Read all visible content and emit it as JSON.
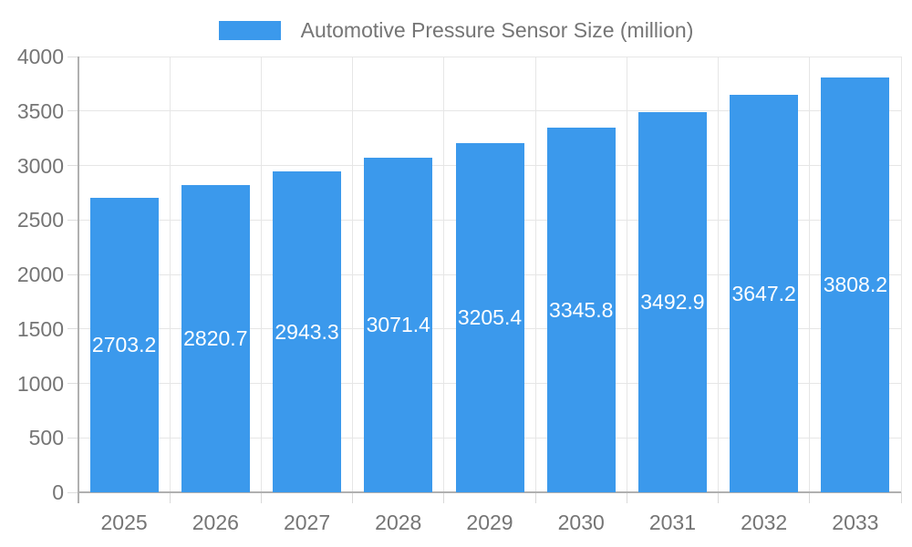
{
  "legend": {
    "label": "Automotive Pressure Sensor Size (million)"
  },
  "chart_data": {
    "type": "bar",
    "title": "Automotive Pressure Sensor Size (million)",
    "categories": [
      "2025",
      "2026",
      "2027",
      "2028",
      "2029",
      "2030",
      "2031",
      "2032",
      "2033"
    ],
    "values": [
      2703.2,
      2820.7,
      2943.3,
      3071.4,
      3205.4,
      3345.8,
      3492.9,
      3647.2,
      3808.2
    ],
    "value_labels": [
      "2703.2",
      "2820.7",
      "2943.3",
      "3071.4",
      "3205.4",
      "3345.8",
      "3492.9",
      "3647.2",
      "3808.2"
    ],
    "xlabel": "",
    "ylabel": "",
    "ylim": [
      0,
      4000
    ],
    "ytick_step": 500,
    "ytick_labels": [
      "0",
      "500",
      "1000",
      "1500",
      "2000",
      "2500",
      "3000",
      "3500",
      "4000"
    ],
    "grid": true,
    "legend_position": "top",
    "bar_color": "#3b99ec",
    "value_label_color": "#ffffff",
    "axis_text_color": "#757575",
    "grid_color": "#e6e6e6",
    "axis_line_color": "#b0b0b0"
  }
}
